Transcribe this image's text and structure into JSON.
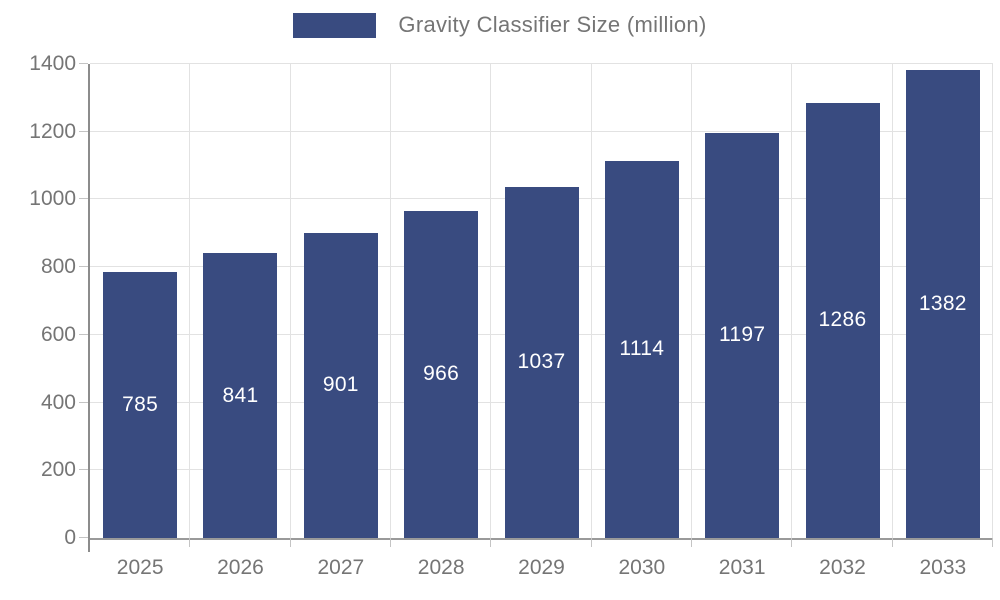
{
  "legend": {
    "label": "Gravity Classifier Size (million)"
  },
  "colors": {
    "bar": "#394B80",
    "axis": "#8C8C8C",
    "grid": "#E2E2E2",
    "tick": "#C4C4C4",
    "tick_label": "#757575",
    "value_label": "#FFFFFF"
  },
  "chart_data": {
    "type": "bar",
    "title": "",
    "legend_entries": [
      "Gravity Classifier Size (million)"
    ],
    "legend_position": "top-center",
    "categories": [
      "2025",
      "2026",
      "2027",
      "2028",
      "2029",
      "2030",
      "2031",
      "2032",
      "2033"
    ],
    "values": [
      785,
      841,
      901,
      966,
      1037,
      1114,
      1197,
      1286,
      1382
    ],
    "xlabel": "",
    "ylabel": "",
    "ylim": [
      0,
      1400
    ],
    "yticks": [
      0,
      200,
      400,
      600,
      800,
      1000,
      1200,
      1400
    ],
    "grid": true,
    "value_labels": "inside-center"
  }
}
